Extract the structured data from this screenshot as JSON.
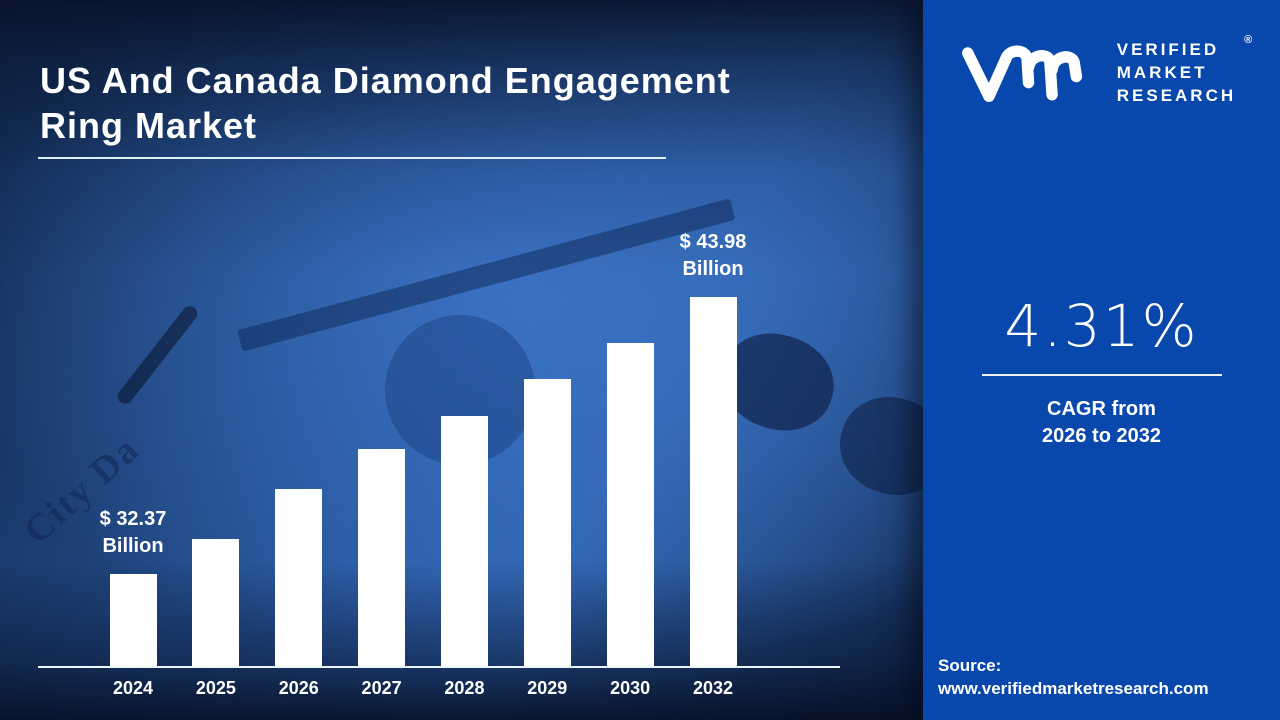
{
  "title": {
    "line1": "US And Canada Diamond Engagement",
    "line2": "Ring Market"
  },
  "background": {
    "watermark": "City Da"
  },
  "brand": {
    "name_lines": [
      "VERIFIED",
      "MARKET",
      "RESEARCH"
    ],
    "registered_mark": "®"
  },
  "kpi": {
    "value": "4.31%",
    "caption_line1": "CAGR from",
    "caption_line2": "2026 to 2032"
  },
  "source": {
    "label": "Source:",
    "url": "www.verifiedmarketresearch.com"
  },
  "colors": {
    "panel_blue": "#0847ab",
    "bar_white": "#ffffff",
    "axis_line": "#eaf6f8",
    "background_mid_blue": "#2f63ae",
    "background_dark_navy": "#12294f"
  },
  "chart_data": {
    "type": "bar",
    "title": "US And Canada Diamond Engagement Ring Market",
    "unit": "USD Billion",
    "categories": [
      "2024",
      "2025",
      "2026",
      "2027",
      "2028",
      "2029",
      "2030",
      "2032"
    ],
    "bar_heights_relative": [
      0.249,
      0.344,
      0.48,
      0.588,
      0.678,
      0.778,
      0.875,
      1.0
    ],
    "labeled_values": {
      "2024": 32.37,
      "2032": 43.98
    },
    "value_labels": [
      {
        "category": "2024",
        "lines": [
          "$ 32.37",
          "Billion"
        ]
      },
      {
        "category": "2032",
        "lines": [
          "$ 43.98",
          "Billion"
        ]
      }
    ],
    "bar_color": "#ffffff",
    "gridlines": false,
    "legend": false,
    "xlabel": "",
    "ylabel": ""
  }
}
